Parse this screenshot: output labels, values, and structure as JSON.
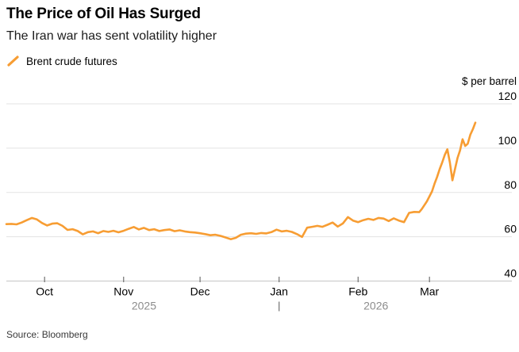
{
  "header": {
    "title": "The Price of Oil Has Surged",
    "subtitle": "The Iran war has sent volatility higher"
  },
  "legend": {
    "label": "Brent crude futures"
  },
  "footer": {
    "source": "Source: Bloomberg"
  },
  "colors": {
    "line": "#F79D33",
    "grid": "#E3E3E3",
    "axis": "#C6C6C6",
    "tick": "#707070",
    "text": "#000000",
    "year_label": "#8C8C8C"
  },
  "chart_data": {
    "type": "line",
    "title": "The Price of Oil Has Surged",
    "subtitle": "The Iran war has sent volatility higher",
    "unit_label": "$ per barrel",
    "ylim": [
      40,
      120
    ],
    "y_ticks": [
      40,
      60,
      80,
      100,
      120
    ],
    "x_range": [
      "2025-09-16",
      "2026-03-19"
    ],
    "x_ticks": [
      {
        "label": "Oct",
        "date": "2025-10-01"
      },
      {
        "label": "Nov",
        "date": "2025-11-01"
      },
      {
        "label": "Dec",
        "date": "2025-12-01"
      },
      {
        "label": "Jan",
        "date": "2026-01-01"
      },
      {
        "label": "Feb",
        "date": "2026-02-01"
      },
      {
        "label": "Mar",
        "date": "2026-03-01"
      }
    ],
    "year_labels": [
      {
        "label": "2025",
        "date": "2025-11-09"
      },
      {
        "label": "2026",
        "date": "2026-02-08"
      }
    ],
    "year_divider_date": "2026-01-01",
    "grid": "horizontal",
    "legend_position": "top-left",
    "series": [
      {
        "name": "Brent crude futures",
        "color": "#F79D33",
        "points": [
          [
            "2025-09-16",
            65.7
          ],
          [
            "2025-09-18",
            65.8
          ],
          [
            "2025-09-20",
            65.6
          ],
          [
            "2025-09-22",
            66.4
          ],
          [
            "2025-09-24",
            67.5
          ],
          [
            "2025-09-26",
            68.5
          ],
          [
            "2025-09-28",
            67.8
          ],
          [
            "2025-09-30",
            66.2
          ],
          [
            "2025-10-02",
            65.1
          ],
          [
            "2025-10-04",
            65.9
          ],
          [
            "2025-10-06",
            66.1
          ],
          [
            "2025-10-08",
            64.9
          ],
          [
            "2025-10-10",
            63.1
          ],
          [
            "2025-10-12",
            63.4
          ],
          [
            "2025-10-14",
            62.6
          ],
          [
            "2025-10-16",
            61.1
          ],
          [
            "2025-10-18",
            62.1
          ],
          [
            "2025-10-20",
            62.4
          ],
          [
            "2025-10-22",
            61.6
          ],
          [
            "2025-10-24",
            62.6
          ],
          [
            "2025-10-26",
            62.2
          ],
          [
            "2025-10-28",
            62.7
          ],
          [
            "2025-10-30",
            62.0
          ],
          [
            "2025-11-01",
            62.7
          ],
          [
            "2025-11-03",
            63.6
          ],
          [
            "2025-11-05",
            64.4
          ],
          [
            "2025-11-07",
            63.3
          ],
          [
            "2025-11-09",
            64.0
          ],
          [
            "2025-11-11",
            63.0
          ],
          [
            "2025-11-13",
            63.4
          ],
          [
            "2025-11-15",
            62.6
          ],
          [
            "2025-11-17",
            63.0
          ],
          [
            "2025-11-19",
            63.3
          ],
          [
            "2025-11-21",
            62.5
          ],
          [
            "2025-11-23",
            62.9
          ],
          [
            "2025-11-25",
            62.4
          ],
          [
            "2025-11-27",
            62.1
          ],
          [
            "2025-11-29",
            61.9
          ],
          [
            "2025-12-01",
            61.6
          ],
          [
            "2025-12-03",
            61.2
          ],
          [
            "2025-12-05",
            60.7
          ],
          [
            "2025-12-07",
            60.9
          ],
          [
            "2025-12-09",
            60.4
          ],
          [
            "2025-12-11",
            59.7
          ],
          [
            "2025-12-13",
            58.9
          ],
          [
            "2025-12-15",
            59.5
          ],
          [
            "2025-12-17",
            60.9
          ],
          [
            "2025-12-19",
            61.4
          ],
          [
            "2025-12-21",
            61.6
          ],
          [
            "2025-12-23",
            61.3
          ],
          [
            "2025-12-25",
            61.7
          ],
          [
            "2025-12-27",
            61.5
          ],
          [
            "2025-12-29",
            62.1
          ],
          [
            "2025-12-31",
            63.2
          ],
          [
            "2026-01-02",
            62.4
          ],
          [
            "2026-01-04",
            62.7
          ],
          [
            "2026-01-06",
            62.2
          ],
          [
            "2026-01-08",
            61.2
          ],
          [
            "2026-01-10",
            59.9
          ],
          [
            "2026-01-12",
            64.1
          ],
          [
            "2026-01-14",
            64.5
          ],
          [
            "2026-01-16",
            64.9
          ],
          [
            "2026-01-18",
            64.5
          ],
          [
            "2026-01-20",
            65.4
          ],
          [
            "2026-01-22",
            66.4
          ],
          [
            "2026-01-24",
            64.6
          ],
          [
            "2026-01-26",
            66.0
          ],
          [
            "2026-01-28",
            68.9
          ],
          [
            "2026-01-30",
            67.3
          ],
          [
            "2026-02-01",
            66.6
          ],
          [
            "2026-02-03",
            67.5
          ],
          [
            "2026-02-05",
            68.1
          ],
          [
            "2026-02-07",
            67.6
          ],
          [
            "2026-02-09",
            68.5
          ],
          [
            "2026-02-11",
            68.2
          ],
          [
            "2026-02-13",
            67.1
          ],
          [
            "2026-02-15",
            68.3
          ],
          [
            "2026-02-17",
            67.3
          ],
          [
            "2026-02-19",
            66.6
          ],
          [
            "2026-02-21",
            70.8
          ],
          [
            "2026-02-23",
            71.2
          ],
          [
            "2026-02-25",
            71.1
          ],
          [
            "2026-02-26",
            72.5
          ],
          [
            "2026-02-28",
            76.0
          ],
          [
            "2026-03-02",
            80.5
          ],
          [
            "2026-03-03",
            84.0
          ],
          [
            "2026-03-04",
            87.0
          ],
          [
            "2026-03-05",
            90.5
          ],
          [
            "2026-03-06",
            93.5
          ],
          [
            "2026-03-07",
            97.0
          ],
          [
            "2026-03-08",
            99.5
          ],
          [
            "2026-03-09",
            93.5
          ],
          [
            "2026-03-10",
            85.5
          ],
          [
            "2026-03-11",
            90.5
          ],
          [
            "2026-03-12",
            95.5
          ],
          [
            "2026-03-13",
            99.0
          ],
          [
            "2026-03-14",
            104.0
          ],
          [
            "2026-03-15",
            101.0
          ],
          [
            "2026-03-16",
            102.0
          ],
          [
            "2026-03-17",
            106.0
          ],
          [
            "2026-03-18",
            108.5
          ],
          [
            "2026-03-19",
            111.5
          ]
        ]
      }
    ]
  }
}
